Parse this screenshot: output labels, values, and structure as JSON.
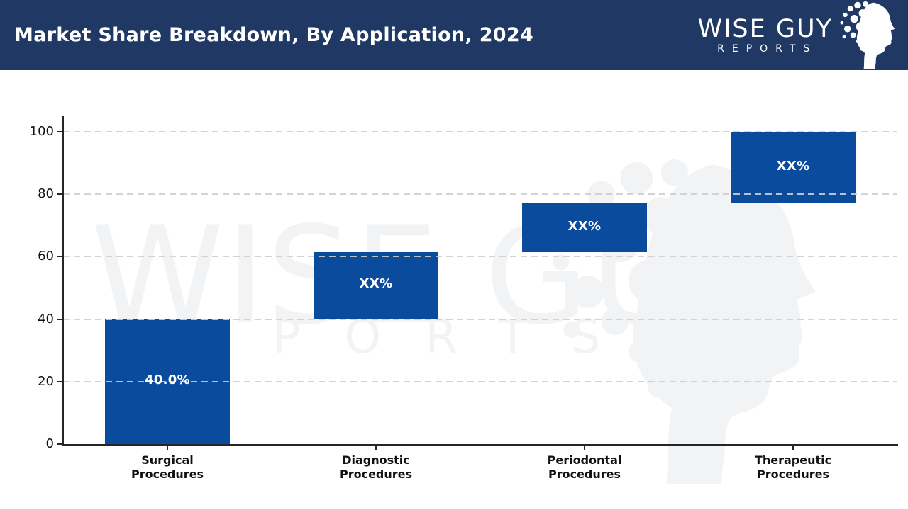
{
  "header": {
    "title": "Market Share Breakdown, By Application, 2024",
    "logo": {
      "line1": "WISE GUY",
      "line2": "REPORTS"
    }
  },
  "watermark": {
    "line1": "WISE GUY",
    "line2": "REPORTS"
  },
  "colors": {
    "header_bg": "#1F3864",
    "bar": "#0A4B9D",
    "grid": "#d9d9d9",
    "axis": "#262626",
    "watermark": "#f2f3f5"
  },
  "chart_data": {
    "type": "bar",
    "subtype": "waterfall",
    "title": "Market Share Breakdown, By Application, 2024",
    "categories": [
      "Surgical Procedures",
      "Diagnostic Procedures",
      "Periodontal Procedures",
      "Therapeutic Procedures"
    ],
    "bars": [
      {
        "category": "Surgical Procedures",
        "start": 0,
        "end": 40,
        "label": "40.0%"
      },
      {
        "category": "Diagnostic Procedures",
        "start": 40,
        "end": 61.5,
        "label": "XX%"
      },
      {
        "category": "Periodontal Procedures",
        "start": 61.5,
        "end": 77,
        "label": "XX%"
      },
      {
        "category": "Therapeutic Procedures",
        "start": 77,
        "end": 100,
        "label": "XX%"
      }
    ],
    "ylim": [
      0,
      100
    ],
    "yticks": [
      0,
      20,
      40,
      60,
      80,
      100
    ],
    "xlabel": "",
    "ylabel": "",
    "grid": "horizontal-dashed",
    "legend": "none",
    "bar_color": "#0A4B9D"
  }
}
